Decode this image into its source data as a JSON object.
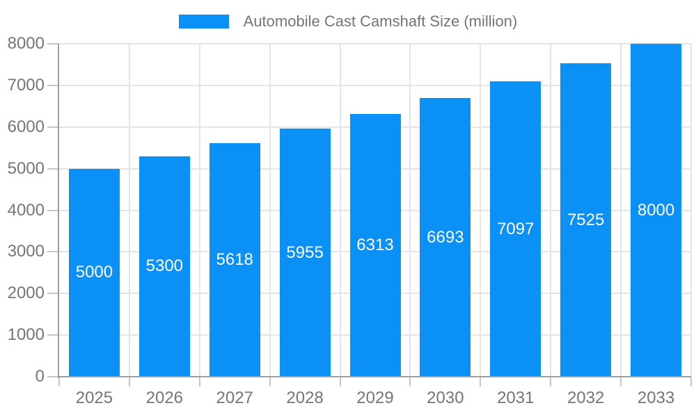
{
  "legend": {
    "label": "Automobile Cast Camshaft Size (million)"
  },
  "colors": {
    "bar": "#0b90f5",
    "axis_line": "#9e9e9e",
    "grid_line": "#e4e4e4",
    "tick_mark": "#c6c6c6",
    "axis_text": "#757575",
    "bar_label_text": "#ffffff",
    "legend_text": "#757575"
  },
  "chart_data": {
    "type": "bar",
    "title": "Automobile Cast Camshaft Size (million)",
    "categories": [
      "2025",
      "2026",
      "2027",
      "2028",
      "2029",
      "2030",
      "2031",
      "2032",
      "2033"
    ],
    "values": [
      5000,
      5300,
      5618,
      5955,
      6313,
      6693,
      7097,
      7525,
      8000
    ],
    "bar_labels": [
      "5000",
      "5300",
      "5618",
      "5955",
      "6313",
      "6693",
      "7097",
      "7525",
      "8000"
    ],
    "xlabel": "",
    "ylabel": "",
    "ylim": [
      0,
      8000
    ],
    "ytick_step": 1000,
    "yticks": [
      "0",
      "1000",
      "2000",
      "3000",
      "4000",
      "5000",
      "6000",
      "7000",
      "8000"
    ],
    "grid": true,
    "legend_position": "top",
    "data_labels": "inside-center-white"
  }
}
